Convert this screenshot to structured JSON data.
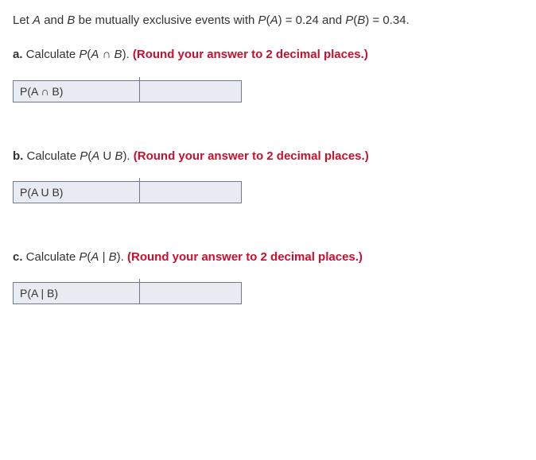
{
  "intro": {
    "prefix": "Let ",
    "A": "A",
    "and_txt": " and ",
    "B": "B",
    "middle": " be mutually exclusive events with ",
    "PA": "P",
    "PA_paren_open": "(",
    "PA_var": "A",
    "PA_paren_close": ")",
    "PA_eq": " = 0.24 and ",
    "PB": "P",
    "PB_paren_open": "(",
    "PB_var": "B",
    "PB_paren_close": ")",
    "PB_eq": " = 0.34."
  },
  "parts": {
    "a": {
      "label": "a.",
      "calc": " Calculate ",
      "expr_P": "P",
      "expr_open": "(",
      "expr_A": "A",
      "expr_op": " ∩ ",
      "expr_B": "B",
      "expr_close": ").",
      "instr": " (Round your answer to 2 decimal places.)",
      "field_label": "P(A ∩ B)"
    },
    "b": {
      "label": "b.",
      "calc": " Calculate ",
      "expr_P": "P",
      "expr_open": "(",
      "expr_A": "A",
      "expr_op": " U ",
      "expr_B": "B",
      "expr_close": ").",
      "instr": " (Round your answer to 2 decimal places.)",
      "field_label": "P(A U B)"
    },
    "c": {
      "label": "c.",
      "calc": " Calculate ",
      "expr_P": "P",
      "expr_open": "(",
      "expr_A": "A",
      "expr_op": " | ",
      "expr_B": "B",
      "expr_close": ").",
      "instr": " (Round your answer to 2 decimal places.)",
      "field_label": "P(A | B)"
    }
  },
  "colors": {
    "instruction": "#c8102e",
    "cell_bg": "#e8ecf2",
    "cell_border": "#6e7b8b",
    "text": "#333333"
  }
}
